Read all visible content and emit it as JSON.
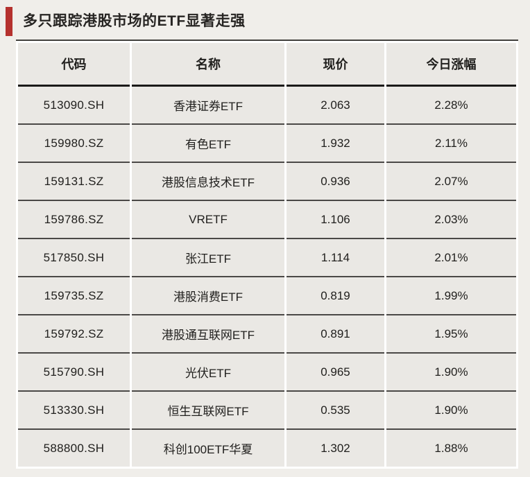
{
  "title": "多只跟踪港股市场的ETF显著走强",
  "accent_color": "#b5312e",
  "chart_data": {
    "type": "table",
    "title": "多只跟踪港股市场的ETF显著走强",
    "columns": [
      "代码",
      "名称",
      "现价",
      "今日涨幅"
    ],
    "column_meanings": [
      "code",
      "name",
      "current price",
      "today's gain"
    ],
    "rows": [
      [
        "513090.SH",
        "香港证券ETF",
        "2.063",
        "2.28%"
      ],
      [
        "159980.SZ",
        "有色ETF",
        "1.932",
        "2.11%"
      ],
      [
        "159131.SZ",
        "港股信息技术ETF",
        "0.936",
        "2.07%"
      ],
      [
        "159786.SZ",
        "VRETF",
        "1.106",
        "2.03%"
      ],
      [
        "517850.SH",
        "张江ETF",
        "1.114",
        "2.01%"
      ],
      [
        "159735.SZ",
        "港股消费ETF",
        "0.819",
        "1.99%"
      ],
      [
        "159792.SZ",
        "港股通互联网ETF",
        "0.891",
        "1.95%"
      ],
      [
        "515790.SH",
        "光伏ETF",
        "0.965",
        "1.90%"
      ],
      [
        "513330.SH",
        "恒生互联网ETF",
        "0.535",
        "1.90%"
      ],
      [
        "588800.SH",
        "科创100ETF华夏",
        "1.302",
        "1.88%"
      ]
    ]
  }
}
